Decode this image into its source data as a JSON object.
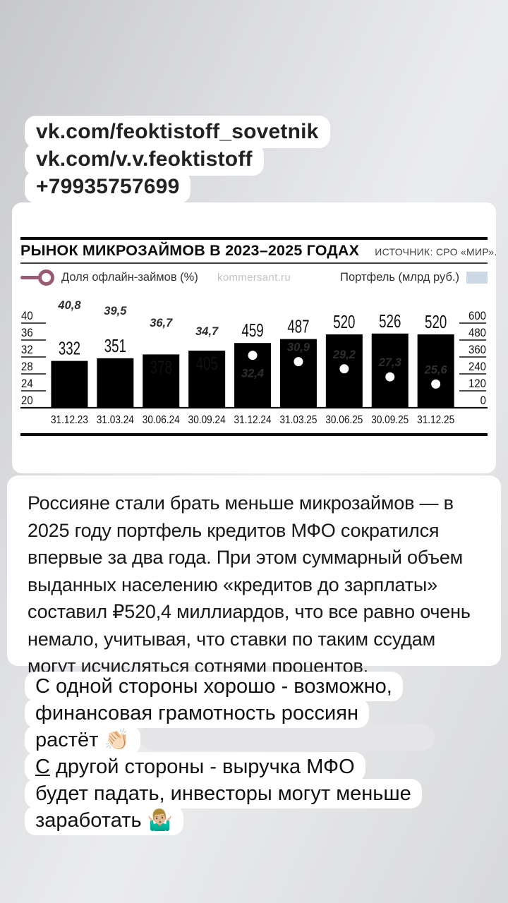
{
  "colors": {
    "line": "#9a5a74",
    "bar": "#cdd8e5",
    "pill": "#e5e5e7"
  },
  "contacts": {
    "lines": [
      "vk.com/feoktistoff_sovetnik",
      "vk.com/v.v.feoktistoff",
      "+79935757699"
    ]
  },
  "chart_data": {
    "type": "combo-bar-line",
    "title": "РЫНОК МИКРОЗАЙМОВ В 2023–2025 ГОДАХ",
    "source": "ИСТОЧНИК: СРО «МИР».",
    "watermark": "kommersant.ru",
    "categories": [
      "31.12.23",
      "31.03.24",
      "30.06.24",
      "30.09.24",
      "31.12.24",
      "31.03.25",
      "30.06.25",
      "30.09.25",
      "31.12.25"
    ],
    "series": [
      {
        "name": "Портфель (млрд руб.)",
        "type": "bar",
        "axis": "right",
        "values": [
          332,
          351,
          378,
          405,
          459,
          487,
          520,
          526,
          520
        ],
        "labels": [
          "332",
          "351",
          "378",
          "405",
          "459",
          "487",
          "520",
          "526",
          "520"
        ]
      },
      {
        "name": "Доля офлайн-займов (%)",
        "type": "line",
        "axis": "left",
        "values": [
          40.8,
          39.5,
          36.7,
          34.7,
          32.4,
          30.9,
          29.2,
          27.3,
          25.6
        ],
        "labels": [
          "40,8",
          "39,5",
          "36,7",
          "34,7",
          "32,4",
          "30,9",
          "29,2",
          "27,3",
          "25,6"
        ]
      }
    ],
    "left_axis": {
      "ticks": [
        40,
        36,
        32,
        28,
        24,
        20
      ],
      "range": [
        20,
        40
      ]
    },
    "right_axis": {
      "ticks": [
        600,
        480,
        360,
        240,
        120,
        0
      ],
      "range": [
        0,
        600
      ]
    },
    "bar_label_positions": [
      "above",
      "above",
      "inside",
      "inside",
      "above",
      "above",
      "above",
      "above",
      "above"
    ],
    "line_label_positions": [
      "above",
      "above",
      "above",
      "above",
      "below",
      "above",
      "above",
      "above",
      "above"
    ],
    "grid": false,
    "legend_position": "top"
  },
  "paragraph": {
    "text": "Россияне стали брать меньше микрозаймов — в 2025 году портфель кредитов МФО сократился впервые за два года. При этом суммарный объем выданных населению «кредитов до зарплаты» составил ₽520,4 миллиардов, что все равно очень немало, учитывая, что ставки по таким ссудам могут исчисляться сотнями процентов."
  },
  "notes": {
    "block1": [
      "С одной стороны хорошо - возможно,",
      "финансовая грамотность россиян",
      "растёт 👏🏻"
    ],
    "block2_first_letter": "С",
    "block2_line1_rest": " другой стороны - выручка МФО",
    "block2_line2": "будет падать, инвесторы могут меньше",
    "block2_line3": "заработать 🤷🏼‍♂️"
  }
}
